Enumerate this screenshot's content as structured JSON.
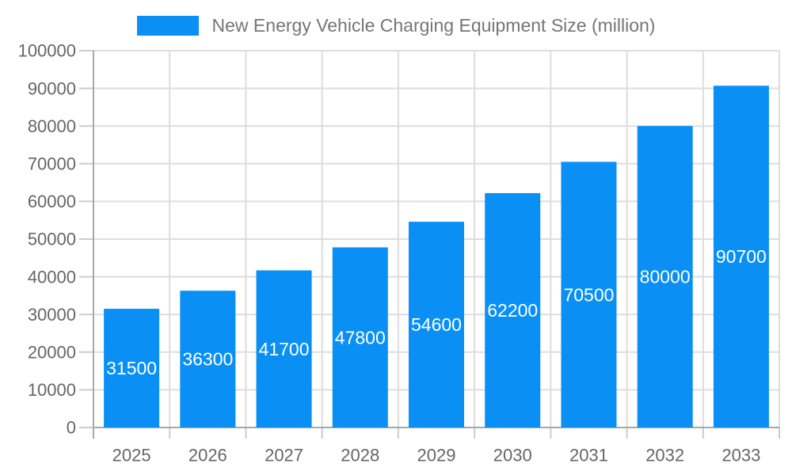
{
  "chart_data": {
    "type": "bar",
    "title": "New Energy Vehicle Charging Equipment Size (million)",
    "categories": [
      "2025",
      "2026",
      "2027",
      "2028",
      "2029",
      "2030",
      "2031",
      "2032",
      "2033"
    ],
    "series": [
      {
        "name": "New Energy Vehicle Charging Equipment Size (million)",
        "values": [
          31500,
          36300,
          41700,
          47800,
          54600,
          62200,
          70500,
          80000,
          90700
        ],
        "color": "#0a90f5"
      }
    ],
    "xlabel": "",
    "ylabel": "",
    "ylim": [
      0,
      100000
    ],
    "ytick_step": 10000,
    "ytick_labels": [
      "0",
      "10000",
      "20000",
      "30000",
      "40000",
      "50000",
      "60000",
      "70000",
      "80000",
      "90000",
      "100000"
    ],
    "grid": true,
    "legend_position": "top-center",
    "value_labels": {
      "position": "inside-center",
      "color": "#ffffff"
    },
    "colors": {
      "bar": "#0a90f5",
      "background": "#ffffff",
      "axis_line": "#a8a8a8",
      "grid_line": "#dddddd",
      "tick_line": "#cccccc",
      "tick_label": "#666666",
      "legend_text": "#757575",
      "value_label": "#ffffff"
    }
  }
}
